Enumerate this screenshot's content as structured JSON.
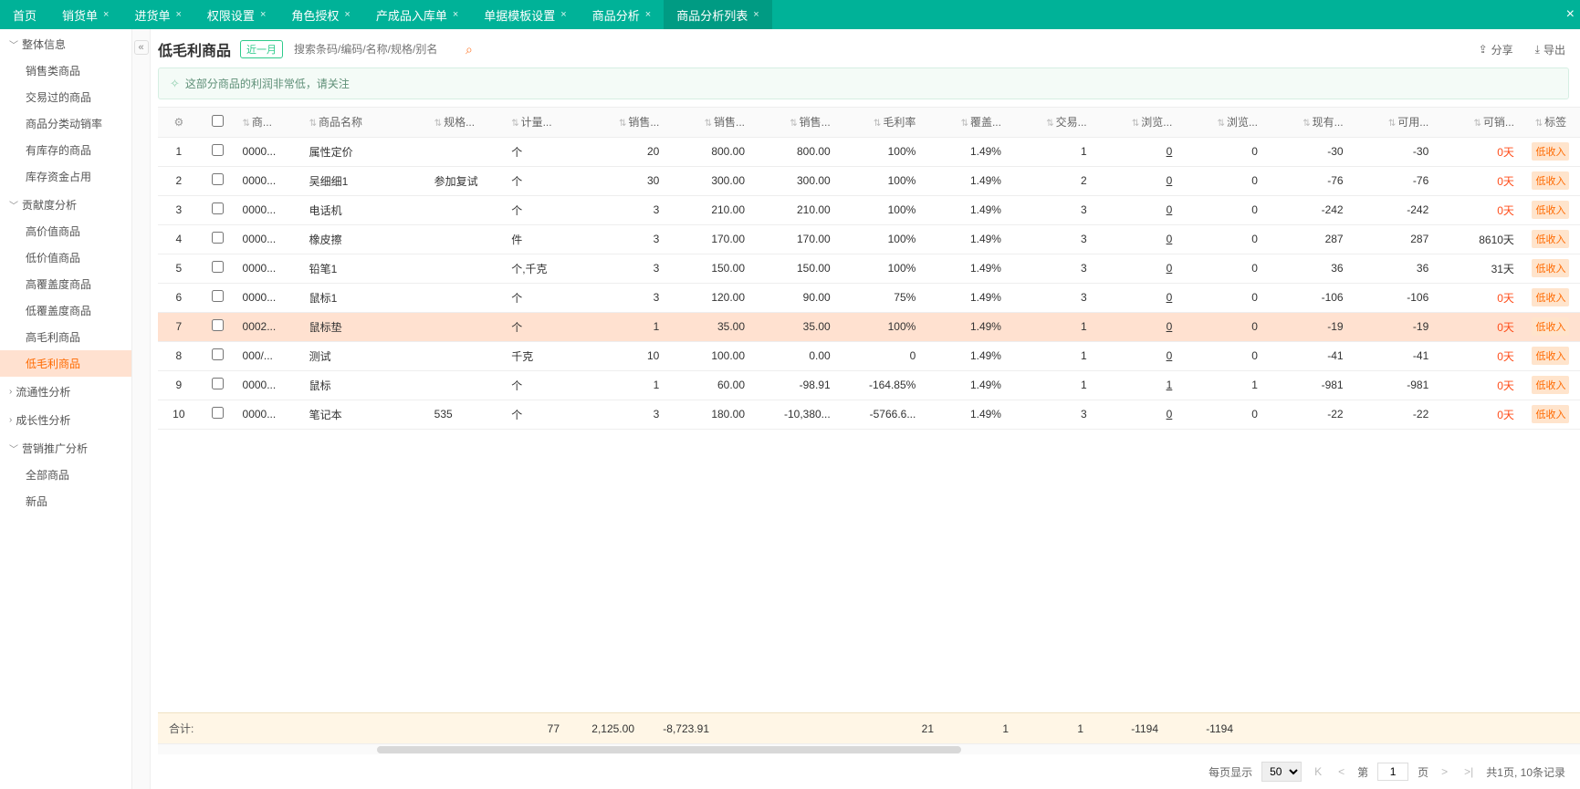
{
  "tabs": [
    {
      "label": "首页",
      "closable": false
    },
    {
      "label": "销货单",
      "closable": true
    },
    {
      "label": "进货单",
      "closable": true
    },
    {
      "label": "权限设置",
      "closable": true
    },
    {
      "label": "角色授权",
      "closable": true
    },
    {
      "label": "产成品入库单",
      "closable": true
    },
    {
      "label": "单据模板设置",
      "closable": true
    },
    {
      "label": "商品分析",
      "closable": true
    },
    {
      "label": "商品分析列表",
      "closable": true,
      "active": true
    }
  ],
  "sidebar": [
    {
      "type": "group",
      "label": "整体信息",
      "expanded": true
    },
    {
      "type": "item",
      "label": "销售类商品"
    },
    {
      "type": "item",
      "label": "交易过的商品"
    },
    {
      "type": "item",
      "label": "商品分类动销率"
    },
    {
      "type": "item",
      "label": "有库存的商品"
    },
    {
      "type": "item",
      "label": "库存资金占用"
    },
    {
      "type": "group",
      "label": "贡献度分析",
      "expanded": true
    },
    {
      "type": "item",
      "label": "高价值商品"
    },
    {
      "type": "item",
      "label": "低价值商品"
    },
    {
      "type": "item",
      "label": "高覆盖度商品"
    },
    {
      "type": "item",
      "label": "低覆盖度商品"
    },
    {
      "type": "item",
      "label": "高毛利商品"
    },
    {
      "type": "item",
      "label": "低毛利商品",
      "active": true
    },
    {
      "type": "group",
      "label": "流通性分析",
      "expanded": false
    },
    {
      "type": "group",
      "label": "成长性分析",
      "expanded": false
    },
    {
      "type": "group",
      "label": "营销推广分析",
      "expanded": true
    },
    {
      "type": "item",
      "label": "全部商品"
    },
    {
      "type": "item",
      "label": "新品"
    }
  ],
  "header": {
    "title": "低毛利商品",
    "period": "近一月",
    "search_placeholder": "搜索条码/编码/名称/规格/别名",
    "share": "分享",
    "export": "导出"
  },
  "notice": "这部分商品的利润非常低，请关注",
  "columns": [
    "",
    "",
    "商...",
    "商品名称",
    "规格...",
    "计量...",
    "销售...",
    "销售...",
    "销售...",
    "毛利率",
    "覆盖...",
    "交易...",
    "浏览...",
    "浏览...",
    "现有...",
    "可用...",
    "可销...",
    "标签"
  ],
  "rows": [
    {
      "idx": "1",
      "code": "0000...",
      "name": "属性定价",
      "spec": "",
      "unit": "个",
      "c1": "20",
      "c2": "800.00",
      "c3": "800.00",
      "rate": "100%",
      "cov": "1.49%",
      "trade": "1",
      "view": "0",
      "view2": "0",
      "stock": "-30",
      "avail": "-30",
      "days": "0天",
      "days_red": true,
      "tag": "低收入"
    },
    {
      "idx": "2",
      "code": "0000...",
      "name": "吴细细1",
      "spec": "参加复试",
      "unit": "个",
      "c1": "30",
      "c2": "300.00",
      "c3": "300.00",
      "rate": "100%",
      "cov": "1.49%",
      "trade": "2",
      "view": "0",
      "view2": "0",
      "stock": "-76",
      "avail": "-76",
      "days": "0天",
      "days_red": true,
      "tag": "低收入"
    },
    {
      "idx": "3",
      "code": "0000...",
      "name": "电话机",
      "spec": "",
      "unit": "个",
      "c1": "3",
      "c2": "210.00",
      "c3": "210.00",
      "rate": "100%",
      "cov": "1.49%",
      "trade": "3",
      "view": "0",
      "view2": "0",
      "stock": "-242",
      "avail": "-242",
      "days": "0天",
      "days_red": true,
      "tag": "低收入"
    },
    {
      "idx": "4",
      "code": "0000...",
      "name": "橡皮擦",
      "spec": "",
      "unit": "件",
      "c1": "3",
      "c2": "170.00",
      "c3": "170.00",
      "rate": "100%",
      "cov": "1.49%",
      "trade": "3",
      "view": "0",
      "view2": "0",
      "stock": "287",
      "avail": "287",
      "days": "8610天",
      "days_red": false,
      "tag": "低收入"
    },
    {
      "idx": "5",
      "code": "0000...",
      "name": "铅笔1",
      "spec": "",
      "unit": "个,千克",
      "c1": "3",
      "c2": "150.00",
      "c3": "150.00",
      "rate": "100%",
      "cov": "1.49%",
      "trade": "3",
      "view": "0",
      "view2": "0",
      "stock": "36",
      "avail": "36",
      "days": "31天",
      "days_red": false,
      "tag": "低收入"
    },
    {
      "idx": "6",
      "code": "0000...",
      "name": "鼠标1",
      "spec": "",
      "unit": "个",
      "c1": "3",
      "c2": "120.00",
      "c3": "90.00",
      "rate": "75%",
      "cov": "1.49%",
      "trade": "3",
      "view": "0",
      "view2": "0",
      "stock": "-106",
      "avail": "-106",
      "days": "0天",
      "days_red": true,
      "tag": "低收入"
    },
    {
      "idx": "7",
      "code": "0002...",
      "name": "鼠标垫",
      "spec": "",
      "unit": "个",
      "c1": "1",
      "c2": "35.00",
      "c3": "35.00",
      "rate": "100%",
      "cov": "1.49%",
      "trade": "1",
      "view": "0",
      "view2": "0",
      "stock": "-19",
      "avail": "-19",
      "days": "0天",
      "days_red": true,
      "tag": "低收入",
      "highlight": true
    },
    {
      "idx": "8",
      "code": "000/...",
      "name": "测试",
      "spec": "",
      "unit": "千克",
      "c1": "10",
      "c2": "100.00",
      "c3": "0.00",
      "rate": "0",
      "cov": "1.49%",
      "trade": "1",
      "view": "0",
      "view2": "0",
      "stock": "-41",
      "avail": "-41",
      "days": "0天",
      "days_red": true,
      "tag": "低收入"
    },
    {
      "idx": "9",
      "code": "0000...",
      "name": "鼠标",
      "spec": "",
      "unit": "个",
      "c1": "1",
      "c2": "60.00",
      "c3": "-98.91",
      "rate": "-164.85%",
      "cov": "1.49%",
      "trade": "1",
      "view": "1",
      "view2": "1",
      "stock": "-981",
      "avail": "-981",
      "days": "0天",
      "days_red": true,
      "tag": "低收入"
    },
    {
      "idx": "10",
      "code": "0000...",
      "name": "笔记本",
      "spec": "535",
      "unit": "个",
      "c1": "3",
      "c2": "180.00",
      "c3": "-10,380...",
      "rate": "-5766.6...",
      "cov": "1.49%",
      "trade": "3",
      "view": "0",
      "view2": "0",
      "stock": "-22",
      "avail": "-22",
      "days": "0天",
      "days_red": true,
      "tag": "低收入"
    }
  ],
  "summary": {
    "label": "合计:",
    "c1": "77",
    "c2": "2,125.00",
    "c3": "-8,723.91",
    "trade": "21",
    "view": "1",
    "view2": "1",
    "stock": "-1194",
    "avail": "-1194"
  },
  "pager": {
    "per_page_label": "每页显示",
    "per_page": "50",
    "page_prefix": "第",
    "page": "1",
    "page_suffix": "页",
    "total": "共1页, 10条记录"
  },
  "colors": {
    "primary": "#00b298",
    "primary_dark": "#009b83",
    "highlight_row": "#ffe1d0",
    "orange_text": "#ff6a00",
    "red_text": "#ff4d1a",
    "summary_bg": "#fff6e6",
    "tag_bg": "#ffe4cc"
  }
}
